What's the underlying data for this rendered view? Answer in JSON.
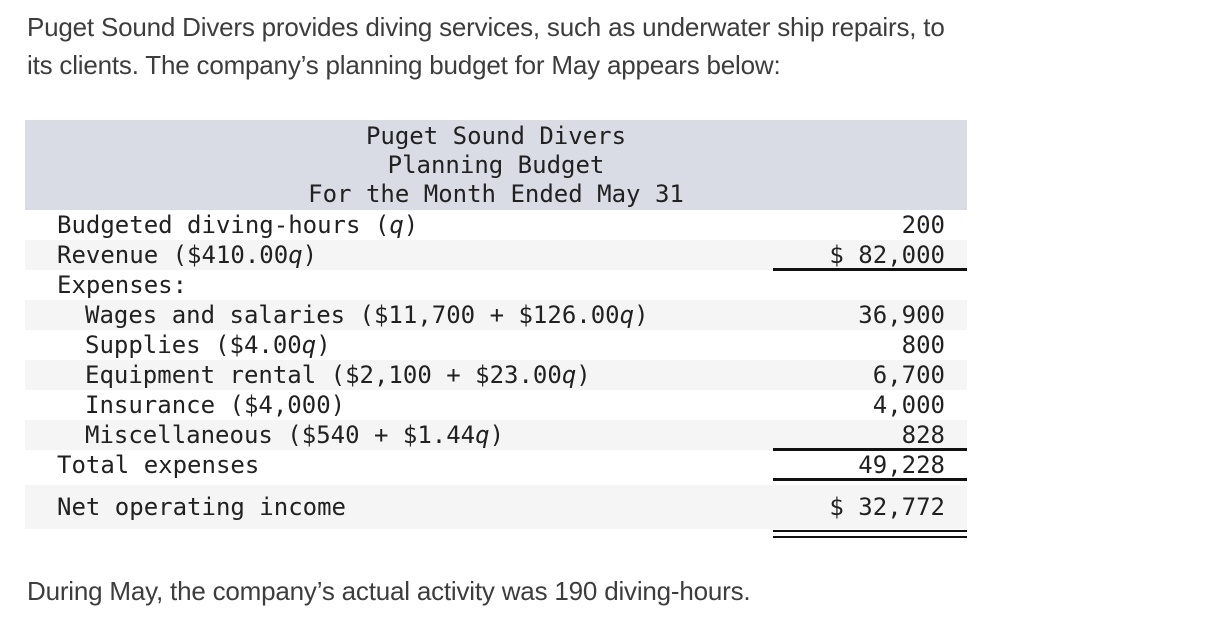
{
  "intro": {
    "line1": "Puget Sound Divers provides diving services, such as underwater ship repairs, to",
    "line2": "its clients. The company’s planning budget for May appears below:"
  },
  "table": {
    "header_lines": [
      "Puget Sound Divers",
      "Planning Budget",
      "For the Month Ended May 31"
    ],
    "rows": [
      {
        "pre": "Budgeted diving-hours (",
        "q": "q",
        "post": ")",
        "amount": "200",
        "indent": 1,
        "shade": false,
        "underline": "none"
      },
      {
        "pre": "Revenue ($410.00",
        "q": "q",
        "post": ")",
        "amount": "$ 82,000",
        "indent": 1,
        "shade": true,
        "underline": "single"
      },
      {
        "pre": "Expenses:",
        "q": "",
        "post": "",
        "amount": "",
        "indent": 1,
        "shade": false,
        "underline": "none"
      },
      {
        "pre": "Wages and salaries ($11,700 + $126.00",
        "q": "q",
        "post": ")",
        "amount": "36,900",
        "indent": 2,
        "shade": true,
        "underline": "none"
      },
      {
        "pre": "Supplies ($4.00",
        "q": "q",
        "post": ")",
        "amount": "800",
        "indent": 2,
        "shade": false,
        "underline": "none"
      },
      {
        "pre": "Equipment rental ($2,100 + $23.00",
        "q": "q",
        "post": ")",
        "amount": "6,700",
        "indent": 2,
        "shade": true,
        "underline": "none"
      },
      {
        "pre": "Insurance ($4,000)",
        "q": "",
        "post": "",
        "amount": "4,000",
        "indent": 2,
        "shade": false,
        "underline": "none"
      },
      {
        "pre": "Miscellaneous ($540 + $1.44",
        "q": "q",
        "post": ")",
        "amount": "828",
        "indent": 2,
        "shade": true,
        "underline": "single"
      },
      {
        "pre": "Total expenses",
        "q": "",
        "post": "",
        "amount": "49,228",
        "indent": 1,
        "shade": false,
        "underline": "single"
      },
      {
        "pre": "Net operating income",
        "q": "",
        "post": "",
        "amount": "$ 32,772",
        "indent": 1,
        "shade": true,
        "underline": "double",
        "tall": true
      }
    ]
  },
  "footer": "During May, the company’s actual activity was 190 diving-hours.",
  "colors": {
    "header_bg": "#d9dce5",
    "row_shade": "#f5f5f6",
    "rule": "#111111",
    "text": "#212121",
    "body_text": "#3d3d3d",
    "page_bg": "#ffffff"
  }
}
